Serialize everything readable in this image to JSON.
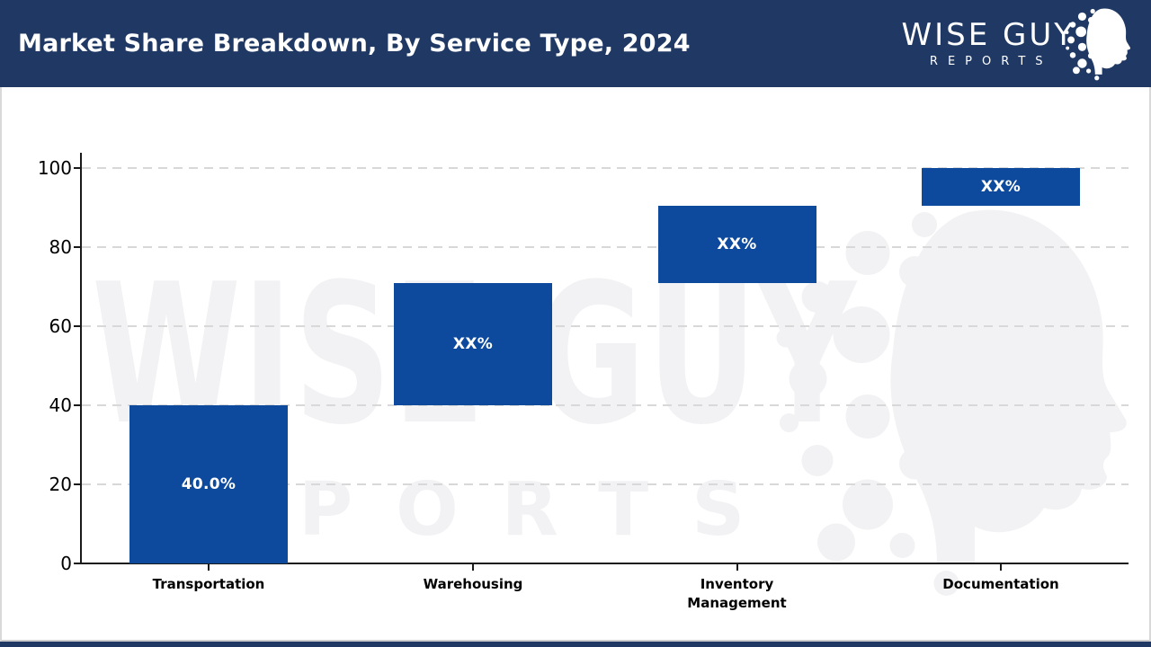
{
  "header": {
    "title": "Market Share Breakdown, By Service Type, 2024",
    "brand": {
      "name": "WISE GUY",
      "tagline": "REPORTS"
    }
  },
  "watermark": {
    "line1": "WISE GUY",
    "line2": "PORTS"
  },
  "colors": {
    "header_bg": "#1f3864",
    "footer_bg": "#1f3864",
    "bar": "#0d4a9e",
    "grid": "#d8d8d8",
    "axis": "#1a1a1a",
    "watermark": "#f2f2f4",
    "value_label": "#ffffff"
  },
  "chart_data": {
    "type": "bar",
    "variant": "waterfall",
    "title": "Market Share Breakdown, By Service Type, 2024",
    "categories": [
      "Transportation",
      "Warehousing",
      "Inventory Management",
      "Documentation"
    ],
    "segments": [
      {
        "category": "Transportation",
        "start": 0,
        "end": 40,
        "value_label": "40.0%"
      },
      {
        "category": "Warehousing",
        "start": 40,
        "end": 71,
        "value_label": "XX%"
      },
      {
        "category": "Inventory Management",
        "start": 71,
        "end": 90.5,
        "value_label": "XX%"
      },
      {
        "category": "Documentation",
        "start": 90.5,
        "end": 100,
        "value_label": "XX%"
      }
    ],
    "ylim": [
      0,
      100
    ],
    "yticks": [
      0,
      20,
      40,
      60,
      80,
      100
    ],
    "grid": "horizontal-dashed",
    "legend": "none",
    "xlabel": "",
    "ylabel": ""
  }
}
